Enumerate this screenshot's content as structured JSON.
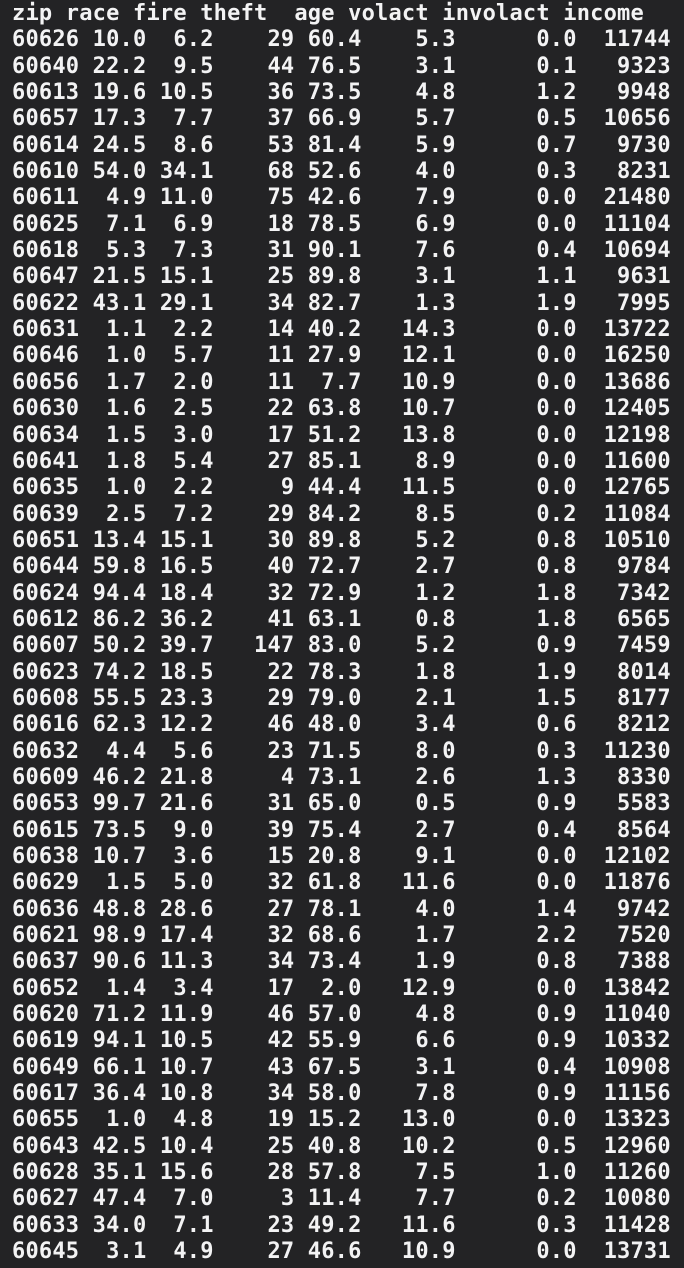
{
  "terminal": {
    "colors": {
      "background": "#232325",
      "text": "#f3f3f4"
    },
    "header_line": "zip race fire theft  age volact involact income",
    "columns": [
      "zip",
      "race",
      "fire",
      "theft",
      "age",
      "volact",
      "involact",
      "income"
    ],
    "rows": [
      [
        "60626",
        "10.0",
        "6.2",
        "29",
        "60.4",
        "5.3",
        "0.0",
        "11744"
      ],
      [
        "60640",
        "22.2",
        "9.5",
        "44",
        "76.5",
        "3.1",
        "0.1",
        "9323"
      ],
      [
        "60613",
        "19.6",
        "10.5",
        "36",
        "73.5",
        "4.8",
        "1.2",
        "9948"
      ],
      [
        "60657",
        "17.3",
        "7.7",
        "37",
        "66.9",
        "5.7",
        "0.5",
        "10656"
      ],
      [
        "60614",
        "24.5",
        "8.6",
        "53",
        "81.4",
        "5.9",
        "0.7",
        "9730"
      ],
      [
        "60610",
        "54.0",
        "34.1",
        "68",
        "52.6",
        "4.0",
        "0.3",
        "8231"
      ],
      [
        "60611",
        "4.9",
        "11.0",
        "75",
        "42.6",
        "7.9",
        "0.0",
        "21480"
      ],
      [
        "60625",
        "7.1",
        "6.9",
        "18",
        "78.5",
        "6.9",
        "0.0",
        "11104"
      ],
      [
        "60618",
        "5.3",
        "7.3",
        "31",
        "90.1",
        "7.6",
        "0.4",
        "10694"
      ],
      [
        "60647",
        "21.5",
        "15.1",
        "25",
        "89.8",
        "3.1",
        "1.1",
        "9631"
      ],
      [
        "60622",
        "43.1",
        "29.1",
        "34",
        "82.7",
        "1.3",
        "1.9",
        "7995"
      ],
      [
        "60631",
        "1.1",
        "2.2",
        "14",
        "40.2",
        "14.3",
        "0.0",
        "13722"
      ],
      [
        "60646",
        "1.0",
        "5.7",
        "11",
        "27.9",
        "12.1",
        "0.0",
        "16250"
      ],
      [
        "60656",
        "1.7",
        "2.0",
        "11",
        "7.7",
        "10.9",
        "0.0",
        "13686"
      ],
      [
        "60630",
        "1.6",
        "2.5",
        "22",
        "63.8",
        "10.7",
        "0.0",
        "12405"
      ],
      [
        "60634",
        "1.5",
        "3.0",
        "17",
        "51.2",
        "13.8",
        "0.0",
        "12198"
      ],
      [
        "60641",
        "1.8",
        "5.4",
        "27",
        "85.1",
        "8.9",
        "0.0",
        "11600"
      ],
      [
        "60635",
        "1.0",
        "2.2",
        "9",
        "44.4",
        "11.5",
        "0.0",
        "12765"
      ],
      [
        "60639",
        "2.5",
        "7.2",
        "29",
        "84.2",
        "8.5",
        "0.2",
        "11084"
      ],
      [
        "60651",
        "13.4",
        "15.1",
        "30",
        "89.8",
        "5.2",
        "0.8",
        "10510"
      ],
      [
        "60644",
        "59.8",
        "16.5",
        "40",
        "72.7",
        "2.7",
        "0.8",
        "9784"
      ],
      [
        "60624",
        "94.4",
        "18.4",
        "32",
        "72.9",
        "1.2",
        "1.8",
        "7342"
      ],
      [
        "60612",
        "86.2",
        "36.2",
        "41",
        "63.1",
        "0.8",
        "1.8",
        "6565"
      ],
      [
        "60607",
        "50.2",
        "39.7",
        "147",
        "83.0",
        "5.2",
        "0.9",
        "7459"
      ],
      [
        "60623",
        "74.2",
        "18.5",
        "22",
        "78.3",
        "1.8",
        "1.9",
        "8014"
      ],
      [
        "60608",
        "55.5",
        "23.3",
        "29",
        "79.0",
        "2.1",
        "1.5",
        "8177"
      ],
      [
        "60616",
        "62.3",
        "12.2",
        "46",
        "48.0",
        "3.4",
        "0.6",
        "8212"
      ],
      [
        "60632",
        "4.4",
        "5.6",
        "23",
        "71.5",
        "8.0",
        "0.3",
        "11230"
      ],
      [
        "60609",
        "46.2",
        "21.8",
        "4",
        "73.1",
        "2.6",
        "1.3",
        "8330"
      ],
      [
        "60653",
        "99.7",
        "21.6",
        "31",
        "65.0",
        "0.5",
        "0.9",
        "5583"
      ],
      [
        "60615",
        "73.5",
        "9.0",
        "39",
        "75.4",
        "2.7",
        "0.4",
        "8564"
      ],
      [
        "60638",
        "10.7",
        "3.6",
        "15",
        "20.8",
        "9.1",
        "0.0",
        "12102"
      ],
      [
        "60629",
        "1.5",
        "5.0",
        "32",
        "61.8",
        "11.6",
        "0.0",
        "11876"
      ],
      [
        "60636",
        "48.8",
        "28.6",
        "27",
        "78.1",
        "4.0",
        "1.4",
        "9742"
      ],
      [
        "60621",
        "98.9",
        "17.4",
        "32",
        "68.6",
        "1.7",
        "2.2",
        "7520"
      ],
      [
        "60637",
        "90.6",
        "11.3",
        "34",
        "73.4",
        "1.9",
        "0.8",
        "7388"
      ],
      [
        "60652",
        "1.4",
        "3.4",
        "17",
        "2.0",
        "12.9",
        "0.0",
        "13842"
      ],
      [
        "60620",
        "71.2",
        "11.9",
        "46",
        "57.0",
        "4.8",
        "0.9",
        "11040"
      ],
      [
        "60619",
        "94.1",
        "10.5",
        "42",
        "55.9",
        "6.6",
        "0.9",
        "10332"
      ],
      [
        "60649",
        "66.1",
        "10.7",
        "43",
        "67.5",
        "3.1",
        "0.4",
        "10908"
      ],
      [
        "60617",
        "36.4",
        "10.8",
        "34",
        "58.0",
        "7.8",
        "0.9",
        "11156"
      ],
      [
        "60655",
        "1.0",
        "4.8",
        "19",
        "15.2",
        "13.0",
        "0.0",
        "13323"
      ],
      [
        "60643",
        "42.5",
        "10.4",
        "25",
        "40.8",
        "10.2",
        "0.5",
        "12960"
      ],
      [
        "60628",
        "35.1",
        "15.6",
        "28",
        "57.8",
        "7.5",
        "1.0",
        "11260"
      ],
      [
        "60627",
        "47.4",
        "7.0",
        "3",
        "11.4",
        "7.7",
        "0.2",
        "10080"
      ],
      [
        "60633",
        "34.0",
        "7.1",
        "23",
        "49.2",
        "11.6",
        "0.3",
        "11428"
      ],
      [
        "60645",
        "3.1",
        "4.9",
        "27",
        "46.6",
        "10.9",
        "0.0",
        "13731"
      ]
    ]
  }
}
